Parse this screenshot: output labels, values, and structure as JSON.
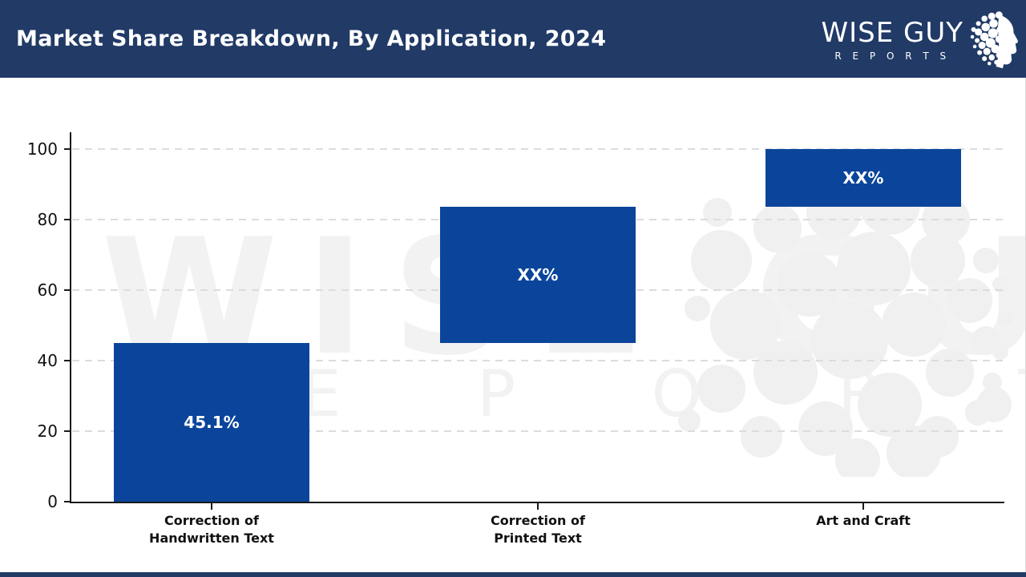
{
  "header": {
    "title": "Market Share Breakdown, By Application, 2024",
    "logo": {
      "wordmark": "WISE GUY",
      "reports": "R E P O R T S"
    }
  },
  "watermark": {
    "wordmark": "WISE GUY",
    "reports": "R E P O R T S"
  },
  "colors": {
    "header_bg": "#213A66",
    "footer_bg": "#213A66",
    "title_text": "#FFFFFF",
    "bar_fill": "#0B459B",
    "bar_label_text": "#FFFFFF",
    "axis_line": "#1A1A1A",
    "tick_label_text": "#111111",
    "grid_line": "#DCDCDC",
    "watermark_text": "#F2F2F2",
    "watermark_fill": "#F0F0F0"
  },
  "chart_data": {
    "type": "bar",
    "subtype": "stacked-waterfall",
    "title": "Market Share Breakdown, By Application, 2024",
    "xlabel": "",
    "ylabel": "",
    "ylim": [
      0,
      100
    ],
    "yticks": [
      0,
      20,
      40,
      60,
      80,
      100
    ],
    "grid": "horizontal-dashed",
    "legend": "none",
    "categories": [
      "Correction of Handwritten Text",
      "Correction of Printed Text",
      "Art and Craft"
    ],
    "category_lines": [
      [
        "Correction of",
        "Handwritten Text"
      ],
      [
        "Correction of",
        "Printed Text"
      ],
      [
        "Art and Craft"
      ]
    ],
    "segments": [
      {
        "category": "Correction of Handwritten Text",
        "value_label": "45.1%",
        "value": 45.1,
        "start": 0,
        "end": 45.1
      },
      {
        "category": "Correction of Printed Text",
        "value_label": "XX%",
        "value": 38.5,
        "start": 45.1,
        "end": 83.6
      },
      {
        "category": "Art and Craft",
        "value_label": "XX%",
        "value": 16.4,
        "start": 83.6,
        "end": 100
      }
    ]
  }
}
